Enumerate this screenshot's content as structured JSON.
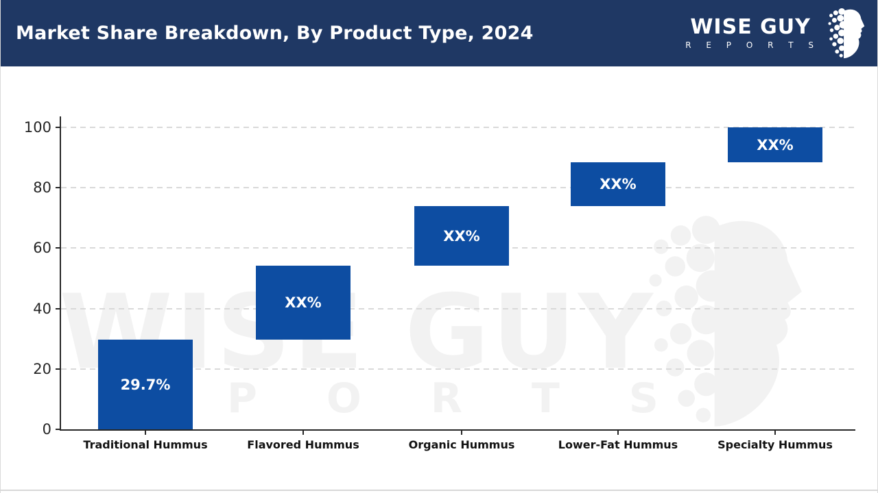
{
  "header": {
    "title": "Market Share Breakdown, By Product Type, 2024",
    "bg_color": "#1f3864",
    "logo": {
      "line1": "WISE GUY",
      "line2": "R E P O R T S"
    }
  },
  "watermark": {
    "line1": "WISE GUY",
    "line2": "R E P O R T S"
  },
  "chart_data": {
    "type": "bar",
    "subtype": "waterfall",
    "title": "Market Share Breakdown, By Product Type, 2024",
    "categories": [
      "Traditional Hummus",
      "Flavored Hummus",
      "Organic Hummus",
      "Lower-Fat Hummus",
      "Specialty Hummus"
    ],
    "segments": [
      {
        "category": "Traditional Hummus",
        "start": 0,
        "end": 29.7,
        "label": "29.7%"
      },
      {
        "category": "Flavored Hummus",
        "start": 29.7,
        "end": 54.2,
        "label": "XX%"
      },
      {
        "category": "Organic Hummus",
        "start": 54.2,
        "end": 73.9,
        "label": "XX%"
      },
      {
        "category": "Lower-Fat Hummus",
        "start": 73.9,
        "end": 88.4,
        "label": "XX%"
      },
      {
        "category": "Specialty Hummus",
        "start": 88.4,
        "end": 100,
        "label": "XX%"
      }
    ],
    "y_ticks": [
      0,
      20,
      40,
      60,
      80,
      100
    ],
    "ylim": [
      0,
      103.6
    ],
    "xlabel": "",
    "ylabel": "",
    "grid": "dashed-horizontal",
    "legend": "none",
    "bar_color": "#0d4da2",
    "bar_label_color": "#ffffff",
    "grid_color": "#d9d9d9",
    "axis_color": "#262626"
  }
}
